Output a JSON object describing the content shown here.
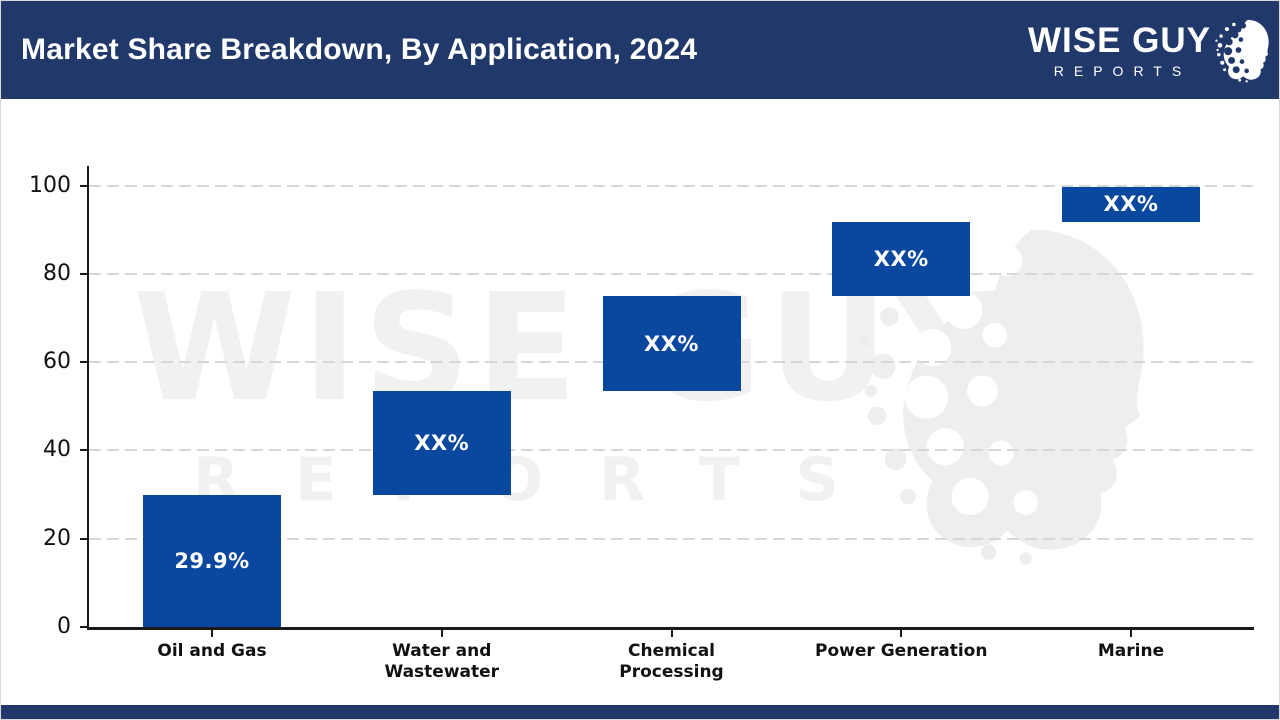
{
  "header": {
    "title": "Market Share Breakdown, By Application, 2024",
    "logo": {
      "line1": "WISE GUY",
      "line2": "REPORTS"
    }
  },
  "watermark": {
    "line1": "WISE GUY",
    "line2": "REPORTS"
  },
  "footer": {
    "bg_color": "#20386a"
  },
  "chart_data": {
    "type": "bar",
    "subtype": "floating-waterfall",
    "title": "Market Share Breakdown, By Application, 2024",
    "categories": [
      "Oil and Gas",
      "Water and\nWastewater",
      "Chemical\nProcessing",
      "Power Generation",
      "Marine"
    ],
    "segments": [
      {
        "category": "Oil and Gas",
        "start": 0,
        "end": 29.9,
        "label": "29.9%"
      },
      {
        "category": "Water and Wastewater",
        "start": 29.9,
        "end": 53.4,
        "label": "XX%"
      },
      {
        "category": "Chemical Processing",
        "start": 53.4,
        "end": 75.0,
        "label": "XX%"
      },
      {
        "category": "Power Generation",
        "start": 75.0,
        "end": 91.8,
        "label": "XX%"
      },
      {
        "category": "Marine",
        "start": 91.8,
        "end": 99.6,
        "label": "XX%"
      }
    ],
    "yticks": [
      0,
      20,
      40,
      60,
      80,
      100
    ],
    "ylim": [
      0,
      104
    ],
    "xlabel": "",
    "ylabel": "",
    "grid": "horizontal-dashed",
    "legend": "none",
    "bar_color": "#0a48a0",
    "bar_label_color": "#ffffff",
    "axis_color": "#1a1a1a",
    "grid_color": "#d7d7d7",
    "header_bg": "#20386a",
    "watermark_color": "#f1f1f1"
  }
}
